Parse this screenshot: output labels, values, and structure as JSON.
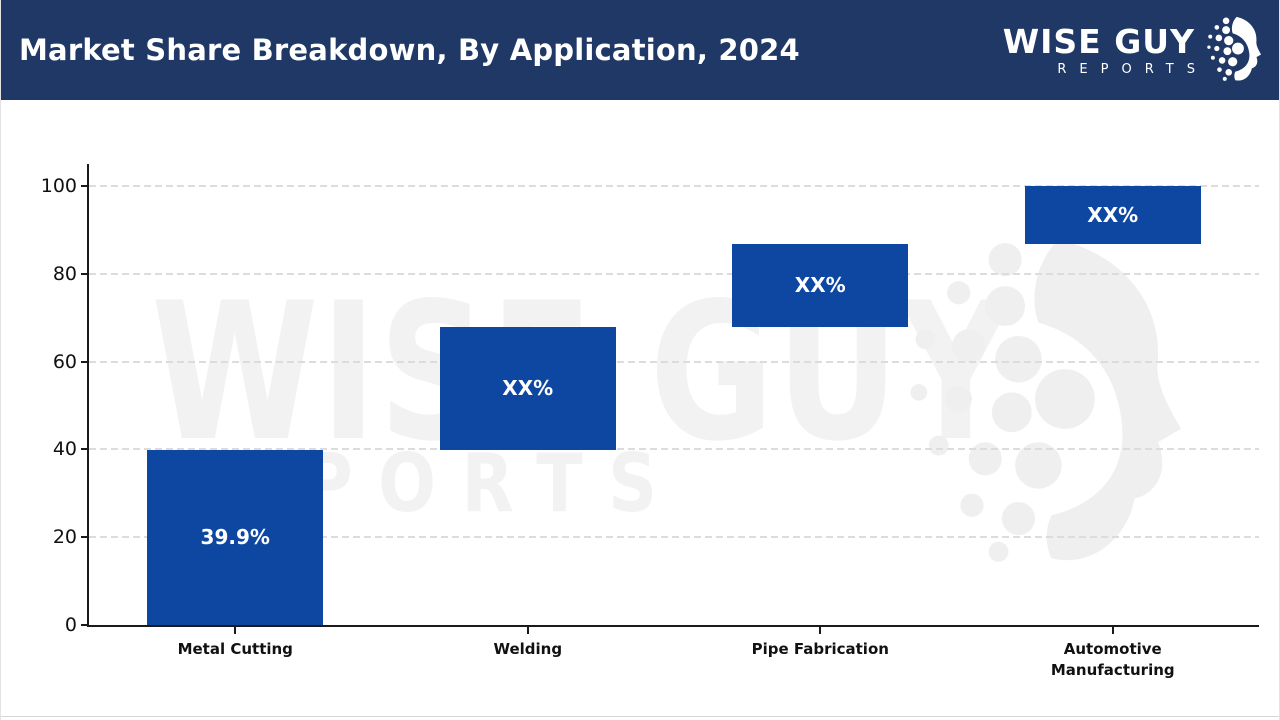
{
  "header": {
    "title": "Market Share Breakdown, By Application, 2024",
    "logo": {
      "line1": "WISE GUY",
      "line2": "REPORTS"
    }
  },
  "watermark": {
    "line1": "WISE GUY",
    "line2": "REPORTS"
  },
  "chart_data": {
    "type": "bar",
    "subtype": "stacked-waterfall-percent",
    "title": "Market Share Breakdown, By Application, 2024",
    "xlabel": "",
    "ylabel": "",
    "categories": [
      "Metal Cutting",
      "Welding",
      "Pipe Fabrication",
      "Automotive Manufacturing"
    ],
    "segments": [
      {
        "category": "Metal Cutting",
        "from": 0,
        "to": 39.9,
        "value": 39.9,
        "label": "39.9%"
      },
      {
        "category": "Welding",
        "from": 39.9,
        "to": 67.9,
        "value": 28.0,
        "label": "XX%"
      },
      {
        "category": "Pipe Fabrication",
        "from": 67.9,
        "to": 86.8,
        "value": 18.9,
        "label": "XX%"
      },
      {
        "category": "Automotive Manufacturing",
        "from": 86.8,
        "to": 100,
        "value": 13.2,
        "label": "XX%"
      }
    ],
    "yticks": [
      0,
      20,
      40,
      60,
      80,
      100
    ],
    "ylim": [
      0,
      105
    ],
    "grid": "horizontal-dashed",
    "legend": false,
    "bar_color": "#0d47a1",
    "bar_label_color": "#ffffff",
    "axis_color": "#1a1a1a",
    "gridline_color": "#dcdcdc",
    "header_color": "#1f3866",
    "watermark_color": "#f2f2f2"
  }
}
